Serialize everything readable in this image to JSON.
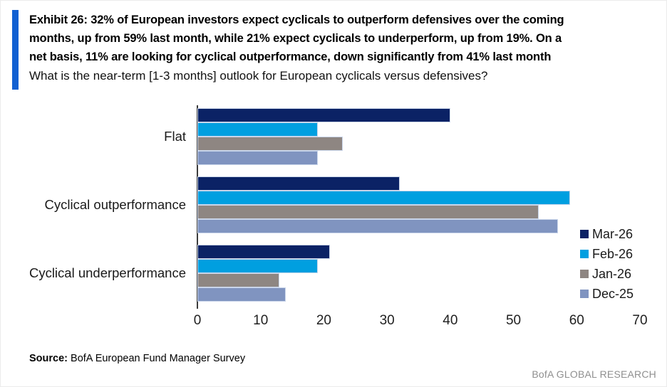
{
  "header": {
    "accent_color": "#1160d2",
    "exhibit_title_lines": [
      "Exhibit 26: 32% of European investors expect cyclicals to outperform defensives over the coming",
      "months, up from 59% last month, while 21% expect cyclicals to underperform, up from 19%. On a",
      "net basis, 11% are looking for cyclical outperformance, down significantly from 41% last month"
    ],
    "question": "What is the near-term [1-3 months] outlook for European cyclicals versus defensives?"
  },
  "chart_data": {
    "type": "bar",
    "orientation": "horizontal",
    "title": "",
    "xlabel": "",
    "ylabel": "",
    "categories": [
      "Flat",
      "Cyclical outperformance",
      "Cyclical underperformance"
    ],
    "series": [
      {
        "name": "Mar-26",
        "color": "#0b2265",
        "values": [
          40,
          32,
          21
        ]
      },
      {
        "name": "Feb-26",
        "color": "#009fe0",
        "values": [
          19,
          59,
          19
        ]
      },
      {
        "name": "Jan-26",
        "color": "#8e8682",
        "values": [
          23,
          54,
          13
        ]
      },
      {
        "name": "Dec-25",
        "color": "#8094c0",
        "values": [
          19,
          57,
          14
        ]
      }
    ],
    "xlim": [
      0,
      70
    ],
    "x_ticks": [
      0,
      10,
      20,
      30,
      40,
      50,
      60,
      70
    ],
    "grid": false,
    "legend_position": "right"
  },
  "footer": {
    "source_label": "Source:",
    "source_text": " BofA European Fund Manager Survey",
    "brand": "BofA GLOBAL RESEARCH"
  }
}
